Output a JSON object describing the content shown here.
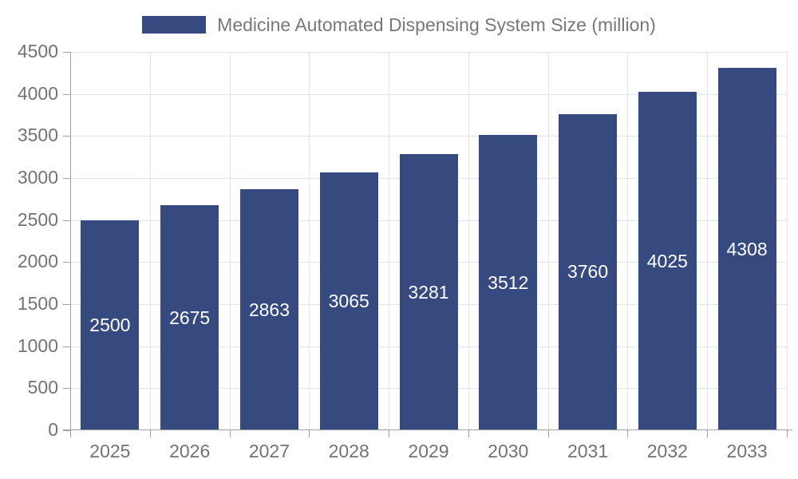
{
  "legend": {
    "label": "Medicine Automated Dispensing System Size (million)",
    "swatch_color": "#364A80"
  },
  "chart_data": {
    "type": "bar",
    "title": "Medicine Automated Dispensing System Size (million)",
    "categories": [
      "2025",
      "2026",
      "2027",
      "2028",
      "2029",
      "2030",
      "2031",
      "2032",
      "2033"
    ],
    "series": [
      {
        "name": "Medicine Automated Dispensing System Size (million)",
        "values": [
          2500,
          2675,
          2863,
          3065,
          3281,
          3512,
          3760,
          4025,
          4308
        ]
      }
    ],
    "xlabel": "",
    "ylabel": "",
    "ylim": [
      0,
      4500
    ],
    "y_ticks": [
      0,
      500,
      1000,
      1500,
      2000,
      2500,
      3000,
      3500,
      4000,
      4500
    ],
    "grid": true,
    "legend_position": "top-center",
    "bar_color": "#364A80",
    "value_label_color": "#ffffff",
    "axis_line_color": "#9aa0a6",
    "gridline_color": "#e0e3e8",
    "tick_label_color": "#707379",
    "legend_text_color": "#75787c",
    "background_color": "#ffffff"
  }
}
